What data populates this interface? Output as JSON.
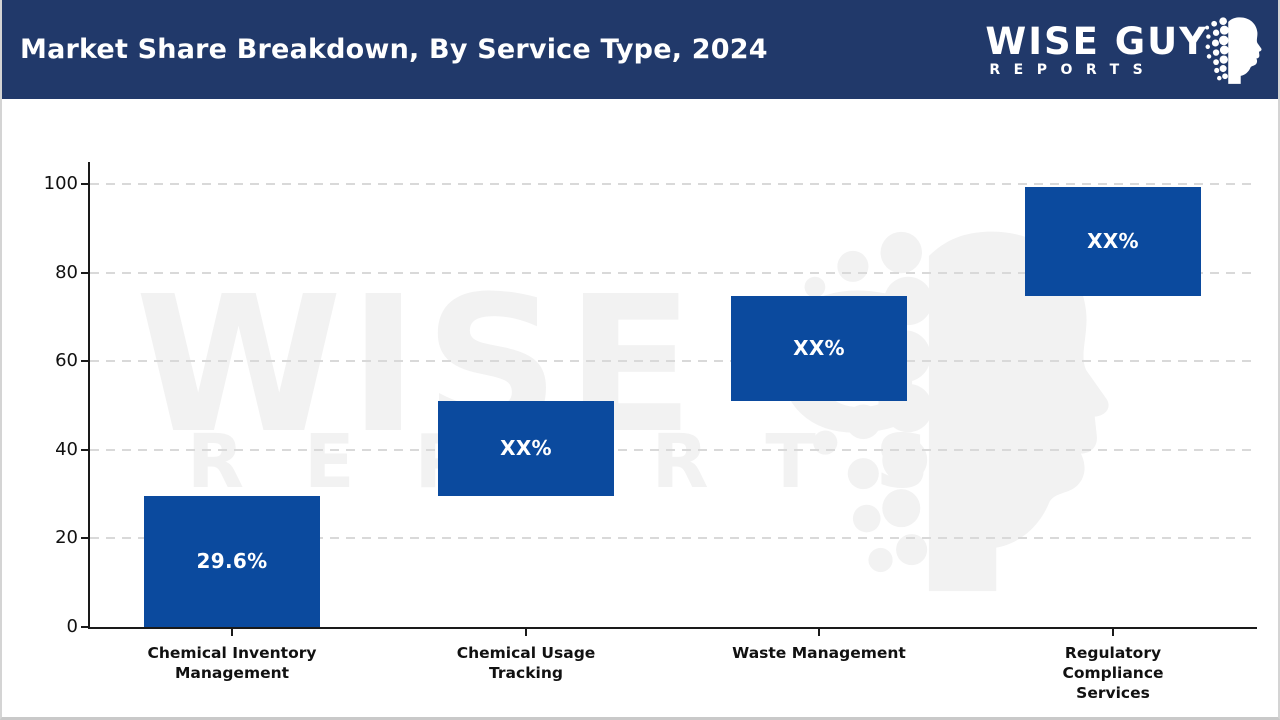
{
  "header": {
    "title": "Market Share Breakdown, By Service Type, 2024",
    "bg_color": "#21396a",
    "logo_line1": "WISE GUY",
    "logo_line2": "REPORTS"
  },
  "watermark": {
    "line1": "WISE GU",
    "line2": "REPORTS"
  },
  "chart_data": {
    "type": "bar",
    "subtype": "floating-waterfall",
    "title": "Market Share Breakdown, By Service Type, 2024",
    "categories": [
      "Chemical Inventory\nManagement",
      "Chemical Usage\nTracking",
      "Waste Management",
      "Regulatory\nCompliance\nServices"
    ],
    "bars": [
      {
        "category": "Chemical Inventory Management",
        "label": "29.6%",
        "start": 0,
        "end": 29.6
      },
      {
        "category": "Chemical Usage Tracking",
        "label": "XX%",
        "start": 29.6,
        "end": 51.1
      },
      {
        "category": "Waste Management",
        "label": "XX%",
        "start": 51.1,
        "end": 74.8
      },
      {
        "category": "Regulatory Compliance Services",
        "label": "XX%",
        "start": 74.8,
        "end": 99.4
      }
    ],
    "yticks": [
      0,
      20,
      40,
      60,
      80,
      100
    ],
    "ylim": [
      0,
      105
    ],
    "xlabel": "",
    "ylabel": "",
    "bar_color": "#0b4a9e",
    "grid": "horizontal-dashed",
    "gridline_color": "#d9d9d9",
    "legend": "none"
  }
}
